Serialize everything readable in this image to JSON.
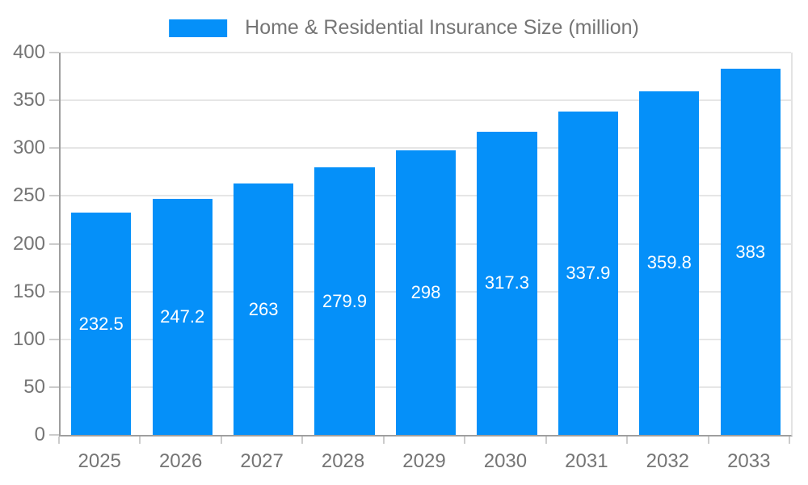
{
  "chart_data": {
    "type": "bar",
    "title": "Home & Residential Insurance Size (million)",
    "categories": [
      "2025",
      "2026",
      "2027",
      "2028",
      "2029",
      "2030",
      "2031",
      "2032",
      "2033"
    ],
    "values": [
      232.5,
      247.2,
      263,
      279.9,
      298,
      317.3,
      337.9,
      359.8,
      383
    ],
    "value_labels": [
      "232.5",
      "247.2",
      "263",
      "279.9",
      "298",
      "317.3",
      "337.9",
      "359.8",
      "383"
    ],
    "xlabel": "",
    "ylabel": "",
    "ylim": [
      0,
      400
    ],
    "ytick_step": 50,
    "ytick_labels": [
      "0",
      "50",
      "100",
      "150",
      "200",
      "250",
      "300",
      "350",
      "400"
    ],
    "grid": true,
    "legend_position": "top-center",
    "colors": {
      "bar": "#0590f9",
      "axis_line": "#9e9e9e",
      "grid_line": "#e6e6e6",
      "tick_mark": "#cccccc",
      "label_text": "#757575",
      "value_text": "#ffffff",
      "background": "#ffffff"
    }
  }
}
